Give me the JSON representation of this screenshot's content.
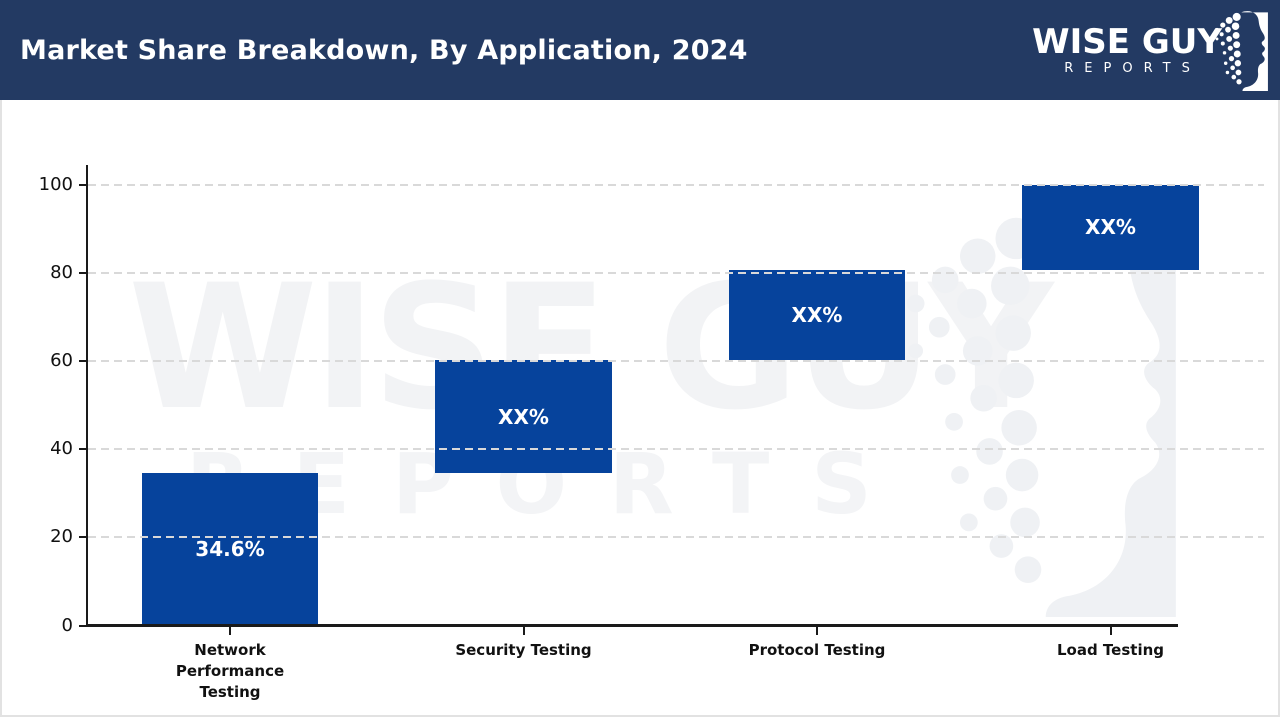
{
  "header": {
    "title": "Market Share Breakdown, By Application, 2024",
    "background_color": "#233a63",
    "text_color": "#ffffff",
    "logo": {
      "wordmark": "WISE GUY",
      "subtitle": "REPORTS"
    }
  },
  "watermark": {
    "wordmark": "WISE GUY",
    "subtitle": "REPORTS"
  },
  "chart_data": {
    "type": "bar",
    "variant": "waterfall",
    "title": "Market Share Breakdown, By Application, 2024",
    "categories": [
      "Network Performance Testing",
      "Security Testing",
      "Protocol Testing",
      "Load Testing"
    ],
    "category_label_lines": [
      [
        "Network",
        "Performance",
        "Testing"
      ],
      [
        "Security Testing"
      ],
      [
        "Protocol Testing"
      ],
      [
        "Load Testing"
      ]
    ],
    "values": [
      {
        "category": "Network Performance Testing",
        "start": 0,
        "end": 34.6,
        "label": "34.6%"
      },
      {
        "category": "Security Testing",
        "start": 34.6,
        "end": 60.2,
        "label": "XX%"
      },
      {
        "category": "Protocol Testing",
        "start": 60.2,
        "end": 80.8,
        "label": "XX%"
      },
      {
        "category": "Load Testing",
        "start": 80.8,
        "end": 100,
        "label": "XX%"
      }
    ],
    "xlabel": "",
    "ylabel": "",
    "ylim": [
      0,
      100
    ],
    "yticks": [
      "0",
      "20",
      "40",
      "60",
      "80",
      "100"
    ],
    "grid": "horizontal-dashed",
    "legend": false,
    "colors": {
      "bar": "#06439c",
      "bar_label": "#ffffff",
      "axis": "#1a1a1a",
      "gridline": "#d9d9d9",
      "tick_label": "#111111"
    }
  }
}
